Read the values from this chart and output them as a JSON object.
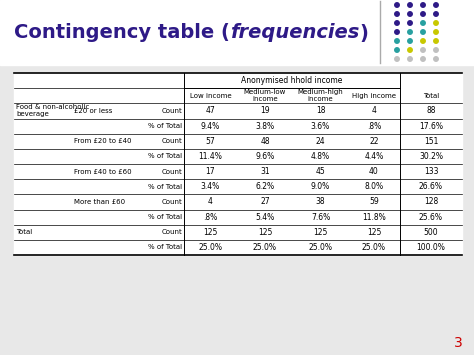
{
  "title_color": "#2E1A87",
  "title_fontsize": 14,
  "bg_color": "#E8E8E8",
  "table_bg": "#FFFFFF",
  "page_number": "3",
  "page_number_color": "#CC0000",
  "table_data": [
    [
      "Food & non-alcoholic\nbeverage",
      "£20 or less",
      "Count",
      "47",
      "19",
      "18",
      "4",
      "88"
    ],
    [
      "",
      "",
      "% of Total",
      "9.4%",
      "3.8%",
      "3.6%",
      ".8%",
      "17.6%"
    ],
    [
      "",
      "From £20 to £40",
      "Count",
      "57",
      "48",
      "24",
      "22",
      "151"
    ],
    [
      "",
      "",
      "% of Total",
      "11.4%",
      "9.6%",
      "4.8%",
      "4.4%",
      "30.2%"
    ],
    [
      "",
      "From £40 to £60",
      "Count",
      "17",
      "31",
      "45",
      "40",
      "133"
    ],
    [
      "",
      "",
      "% of Total",
      "3.4%",
      "6.2%",
      "9.0%",
      "8.0%",
      "26.6%"
    ],
    [
      "",
      "More than £60",
      "Count",
      "4",
      "27",
      "38",
      "59",
      "128"
    ],
    [
      "",
      "",
      "% of Total",
      ".8%",
      "5.4%",
      "7.6%",
      "11.8%",
      "25.6%"
    ],
    [
      "Total",
      "",
      "Count",
      "125",
      "125",
      "125",
      "125",
      "500"
    ],
    [
      "",
      "",
      "% of Total",
      "25.0%",
      "25.0%",
      "25.0%",
      "25.0%",
      "100.0%"
    ]
  ],
  "dot_grid": [
    [
      "#2E1A87",
      "#2E1A87",
      "#2E1A87",
      "#2E1A87"
    ],
    [
      "#2E1A87",
      "#2E1A87",
      "#2E1A87",
      "#2E1A87"
    ],
    [
      "#2E1A87",
      "#2E1A87",
      "#28A0A0",
      "#C8C800"
    ],
    [
      "#2E1A87",
      "#28A0A0",
      "#28A0A0",
      "#C8C800"
    ],
    [
      "#28A0A0",
      "#28A0A0",
      "#C8C800",
      "#C8C800"
    ],
    [
      "#28A0A0",
      "#C8C800",
      "#C0C0C0",
      "#C0C0C0"
    ],
    [
      "#C0C0C0",
      "#C0C0C0",
      "#C0C0C0",
      "#C0C0C0"
    ]
  ]
}
